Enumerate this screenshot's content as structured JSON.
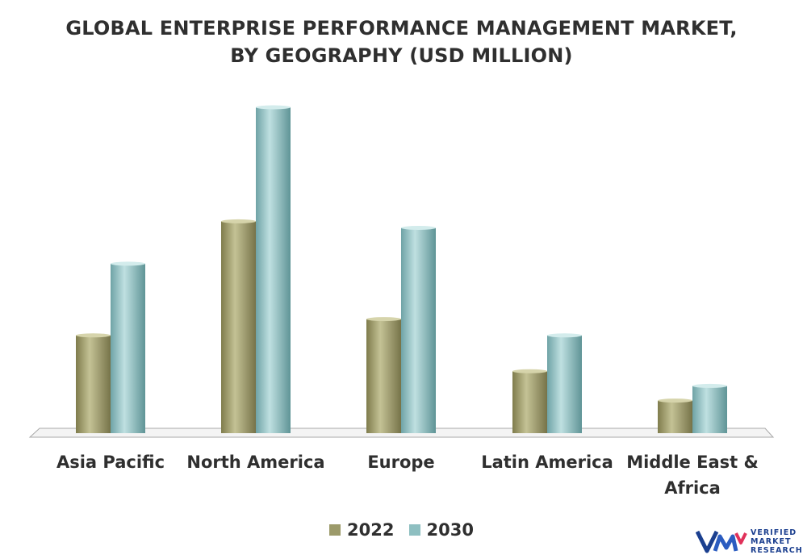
{
  "title_line1": "GLOBAL ENTERPRISE PERFORMANCE MANAGEMENT MARKET,",
  "title_line2": "BY GEOGRAPHY (USD MILLION)",
  "logo": {
    "line1": "VERIFIED",
    "line2": "MARKET",
    "line3": "RESEARCH"
  },
  "chart_data": {
    "type": "bar",
    "title": "GLOBAL ENTERPRISE PERFORMANCE MANAGEMENT MARKET, BY GEOGRAPHY (USD MILLION)",
    "categories": [
      "Asia Pacific",
      "North America",
      "Europe",
      "Latin America",
      "Middle East & Africa"
    ],
    "series": [
      {
        "name": "2022",
        "color": "#9c9a6a",
        "values": [
          30,
          65,
          35,
          19,
          10
        ]
      },
      {
        "name": "2030",
        "color": "#8ebfc1",
        "values": [
          52,
          100,
          63,
          30,
          14.5
        ]
      }
    ],
    "ylim": [
      0,
      100
    ],
    "grid": false,
    "legend": "bottom-center"
  }
}
